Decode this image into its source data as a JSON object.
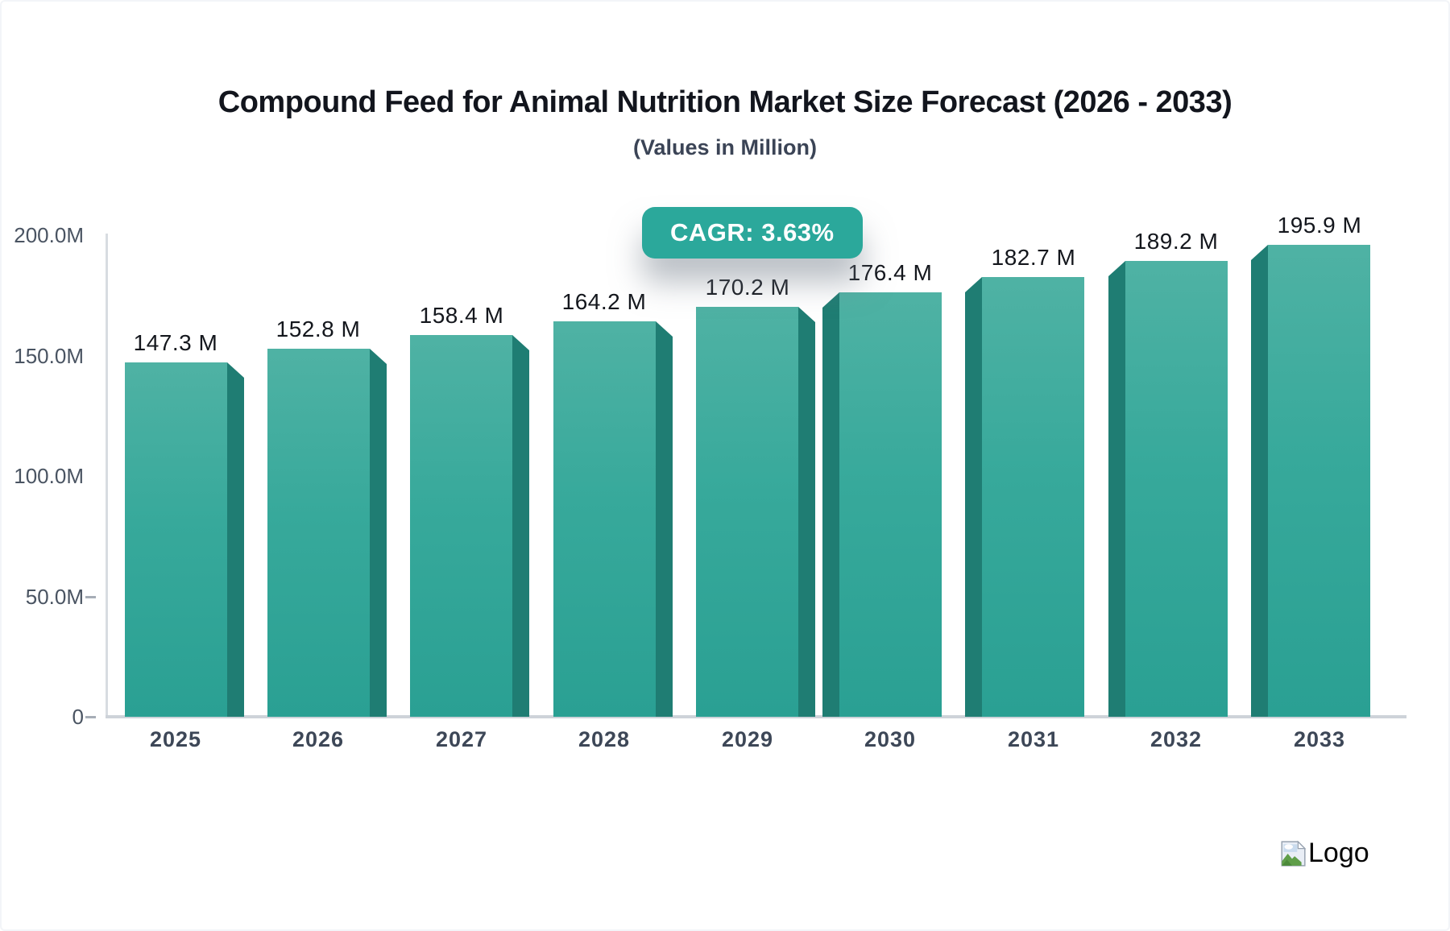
{
  "chart_data": {
    "type": "bar",
    "title": "Compound Feed for Animal Nutrition Market Size Forecast (2026 - 2033)",
    "subtitle": "(Values in Million)",
    "cagr_label": "CAGR: 3.63%",
    "cagr_value": "3.63%",
    "categories": [
      "2025",
      "2026",
      "2027",
      "2028",
      "2029",
      "2030",
      "2031",
      "2032",
      "2033"
    ],
    "values": [
      147.3,
      152.8,
      158.4,
      164.2,
      170.2,
      176.4,
      182.7,
      189.2,
      195.9
    ],
    "bar_labels": [
      "147.3 M",
      "152.8 M",
      "158.4 M",
      "164.2 M",
      "170.2 M",
      "176.4 M",
      "182.7 M",
      "189.2 M",
      "195.9 M"
    ],
    "unit": "Million",
    "ylim": [
      0,
      200
    ],
    "y_ticks": [
      {
        "label": "200.0M",
        "value": 200
      },
      {
        "label": "150.0M",
        "value": 150
      },
      {
        "label": "100.0M",
        "value": 100
      },
      {
        "label": "50.0M",
        "value": 50
      },
      {
        "label": "0",
        "value": 0
      }
    ],
    "grid": false,
    "legend": false,
    "bar_color_face": "#35a89a",
    "bar_color_side": "#1f7d73",
    "badge_color": "#2ba89b"
  },
  "footer": {
    "logo_text": "Logo"
  }
}
